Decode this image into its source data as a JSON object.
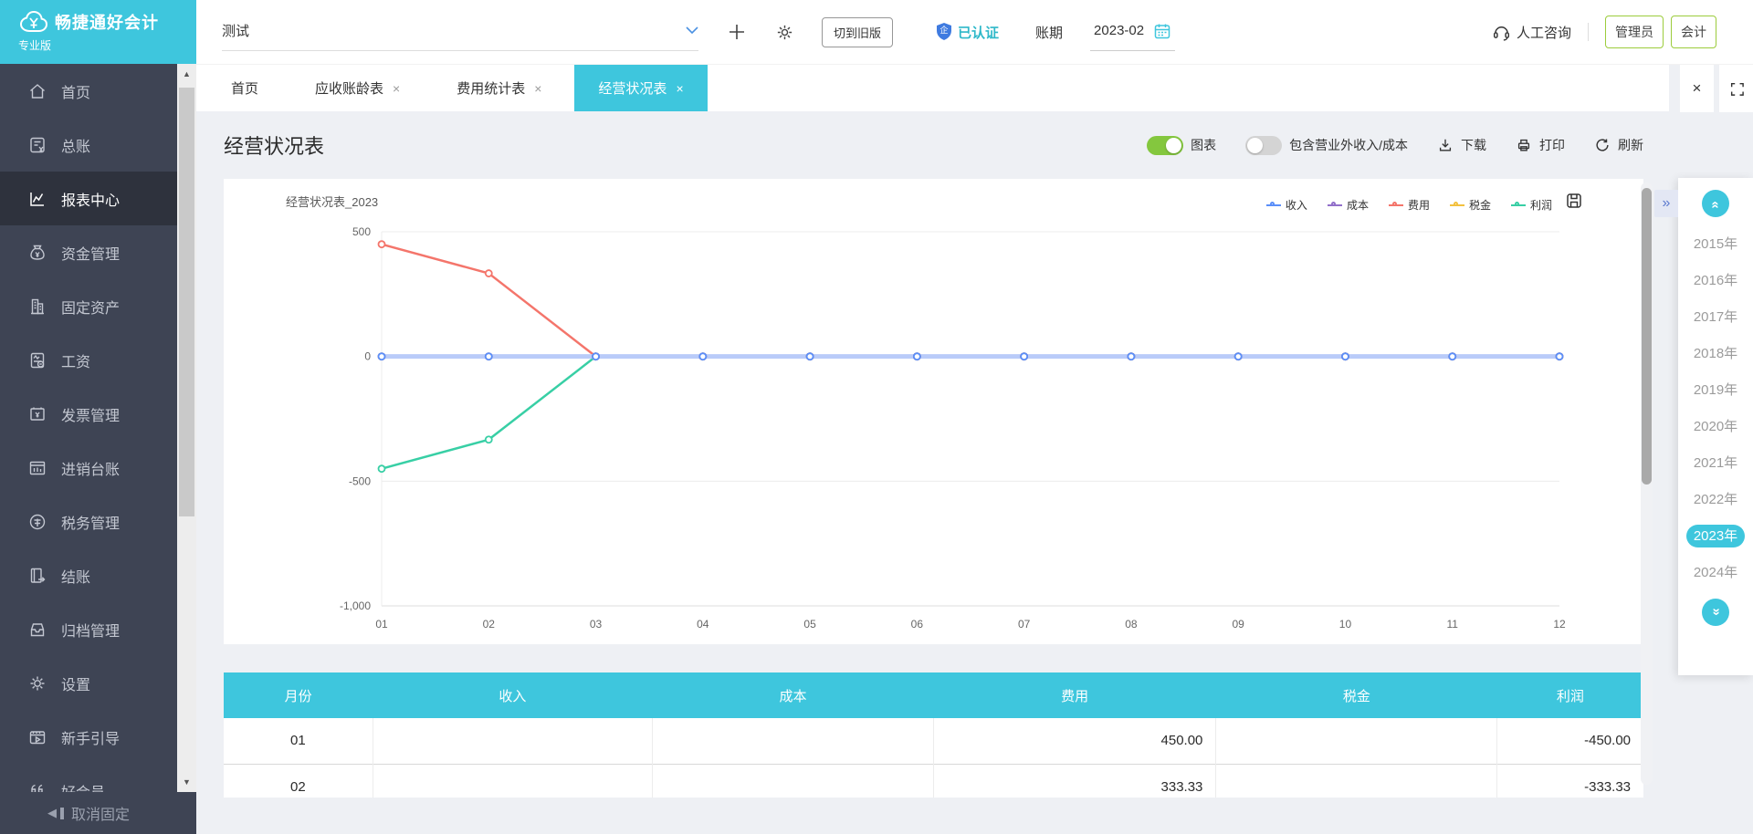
{
  "brand": {
    "name": "畅捷通好会计",
    "edition": "专业版"
  },
  "sidebar": {
    "items": [
      {
        "label": "首页",
        "icon": "home-icon"
      },
      {
        "label": "总账",
        "icon": "general-ledger-icon"
      },
      {
        "label": "报表中心",
        "icon": "report-center-icon"
      },
      {
        "label": "资金管理",
        "icon": "funds-management-icon"
      },
      {
        "label": "固定资产",
        "icon": "fixed-assets-icon"
      },
      {
        "label": "工资",
        "icon": "salary-icon"
      },
      {
        "label": "发票管理",
        "icon": "invoice-management-icon"
      },
      {
        "label": "进销台账",
        "icon": "trade-ledger-icon"
      },
      {
        "label": "税务管理",
        "icon": "tax-management-icon"
      },
      {
        "label": "结账",
        "icon": "closing-icon"
      },
      {
        "label": "归档管理",
        "icon": "archive-management-icon"
      },
      {
        "label": "设置",
        "icon": "settings-icon"
      },
      {
        "label": "新手引导",
        "icon": "beginner-guide-icon"
      },
      {
        "label": "好会员",
        "icon": "member-icon"
      }
    ],
    "unpin_label": "取消固定"
  },
  "topbar": {
    "company": "测试",
    "switch_old_label": "切到旧版",
    "certified_label": "已认证",
    "certified_badge": "企",
    "period_label": "账期",
    "period_value": "2023-02",
    "support_label": "人工咨询",
    "admin_label": "管理员",
    "accountant_label": "会计"
  },
  "tabs": [
    {
      "label": "首页"
    },
    {
      "label": "应收账龄表"
    },
    {
      "label": "费用统计表"
    },
    {
      "label": "经营状况表"
    }
  ],
  "tab_close_glyph": "×",
  "page": {
    "title": "经营状况表",
    "chart_toggle_label": "图表",
    "include_toggle_label": "包含营业外收入/成本",
    "download_label": "下载",
    "print_label": "打印",
    "refresh_label": "刷新"
  },
  "chart_data": {
    "type": "line",
    "title": "经营状况表_2023",
    "x": [
      "01",
      "02",
      "03",
      "04",
      "05",
      "06",
      "07",
      "08",
      "09",
      "10",
      "11",
      "12"
    ],
    "ylim": [
      -1000,
      500
    ],
    "yticks": {
      "values": [
        500,
        0,
        -500,
        -1000
      ],
      "labels": [
        "500",
        "0",
        "-500",
        "-1,000"
      ]
    },
    "series": [
      {
        "name": "收入",
        "color": "#5B8FF9",
        "values": [
          0,
          0,
          0,
          0,
          0,
          0,
          0,
          0,
          0,
          0,
          0,
          0
        ]
      },
      {
        "name": "成本",
        "color": "#9270CA",
        "values": [
          0,
          0,
          0,
          0,
          0,
          0,
          0,
          0,
          0,
          0,
          0,
          0
        ]
      },
      {
        "name": "费用",
        "color": "#F4756B",
        "values": [
          450,
          333.33,
          0,
          0,
          0,
          0,
          0,
          0,
          0,
          0,
          0,
          0
        ]
      },
      {
        "name": "税金",
        "color": "#F3C13F",
        "values": [
          0,
          0,
          0,
          0,
          0,
          0,
          0,
          0,
          0,
          0,
          0,
          0
        ]
      },
      {
        "name": "利润",
        "color": "#38CFA5",
        "values": [
          -450,
          -333.33,
          0,
          0,
          0,
          0,
          0,
          0,
          0,
          0,
          0,
          0
        ]
      }
    ],
    "zero_band_color": "#B9CBF9",
    "legend_position": "top-right",
    "grid": true
  },
  "year_panel": {
    "years": [
      "2015年",
      "2016年",
      "2017年",
      "2018年",
      "2019年",
      "2020年",
      "2021年",
      "2022年",
      "2023年",
      "2024年"
    ],
    "selected": "2023年",
    "selected_index": 8
  },
  "table": {
    "headers": [
      "月份",
      "收入",
      "成本",
      "费用",
      "税金",
      "利润"
    ],
    "rows": [
      [
        "01",
        "",
        "",
        "450.00",
        "",
        "-450.00"
      ],
      [
        "02",
        "",
        "",
        "333.33",
        "",
        "-333.33"
      ]
    ]
  },
  "colors": {
    "brand_cyan": "#3EC6DD",
    "sidebar_bg": "#3E4454",
    "sidebar_active_bg": "#2E323D",
    "toggle_on_green": "#84C73E",
    "role_button_border": "#9CCC3C",
    "certified_text": "#2FB8C9",
    "table_header_bg": "#3EC6DD"
  }
}
